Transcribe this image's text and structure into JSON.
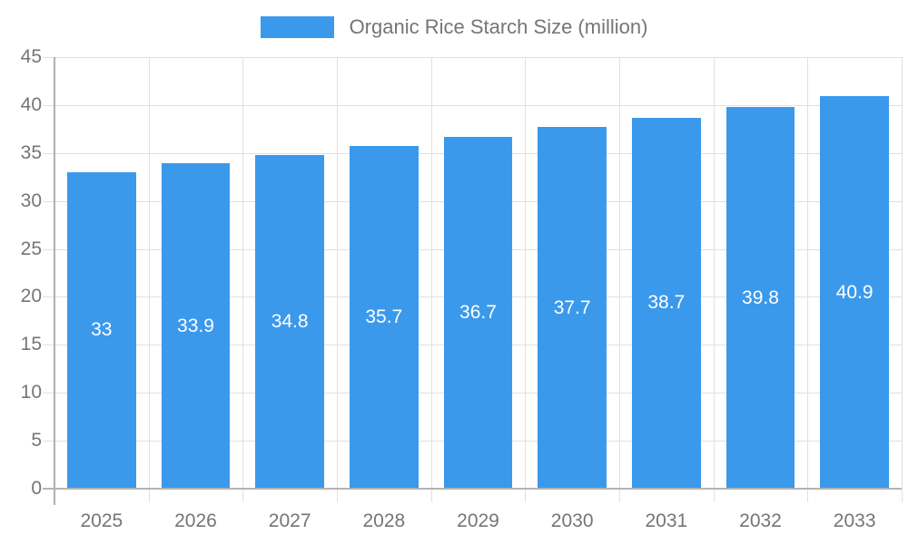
{
  "legend": {
    "label": "Organic Rice Starch Size (million)"
  },
  "colors": {
    "bar": "#3B99EC",
    "grid": "#E0E0E0",
    "axis": "#B3B3B3",
    "text": "#757575",
    "value_label": "#FFFFFF",
    "background": "#FFFFFF"
  },
  "chart_data": {
    "type": "bar",
    "title": "Organic Rice Starch Size (million)",
    "categories": [
      "2025",
      "2026",
      "2027",
      "2028",
      "2029",
      "2030",
      "2031",
      "2032",
      "2033"
    ],
    "values": [
      33,
      33.9,
      34.8,
      35.7,
      36.7,
      37.7,
      38.7,
      39.8,
      40.9
    ],
    "value_labels": [
      "33",
      "33.9",
      "34.8",
      "35.7",
      "36.7",
      "37.7",
      "38.7",
      "39.8",
      "40.9"
    ],
    "xlabel": "",
    "ylabel": "",
    "ylim": [
      0,
      45
    ],
    "yticks": [
      0,
      5,
      10,
      15,
      20,
      25,
      30,
      35,
      40,
      45
    ],
    "grid": true,
    "legend_position": "top",
    "value_label_position": "center-inside"
  }
}
